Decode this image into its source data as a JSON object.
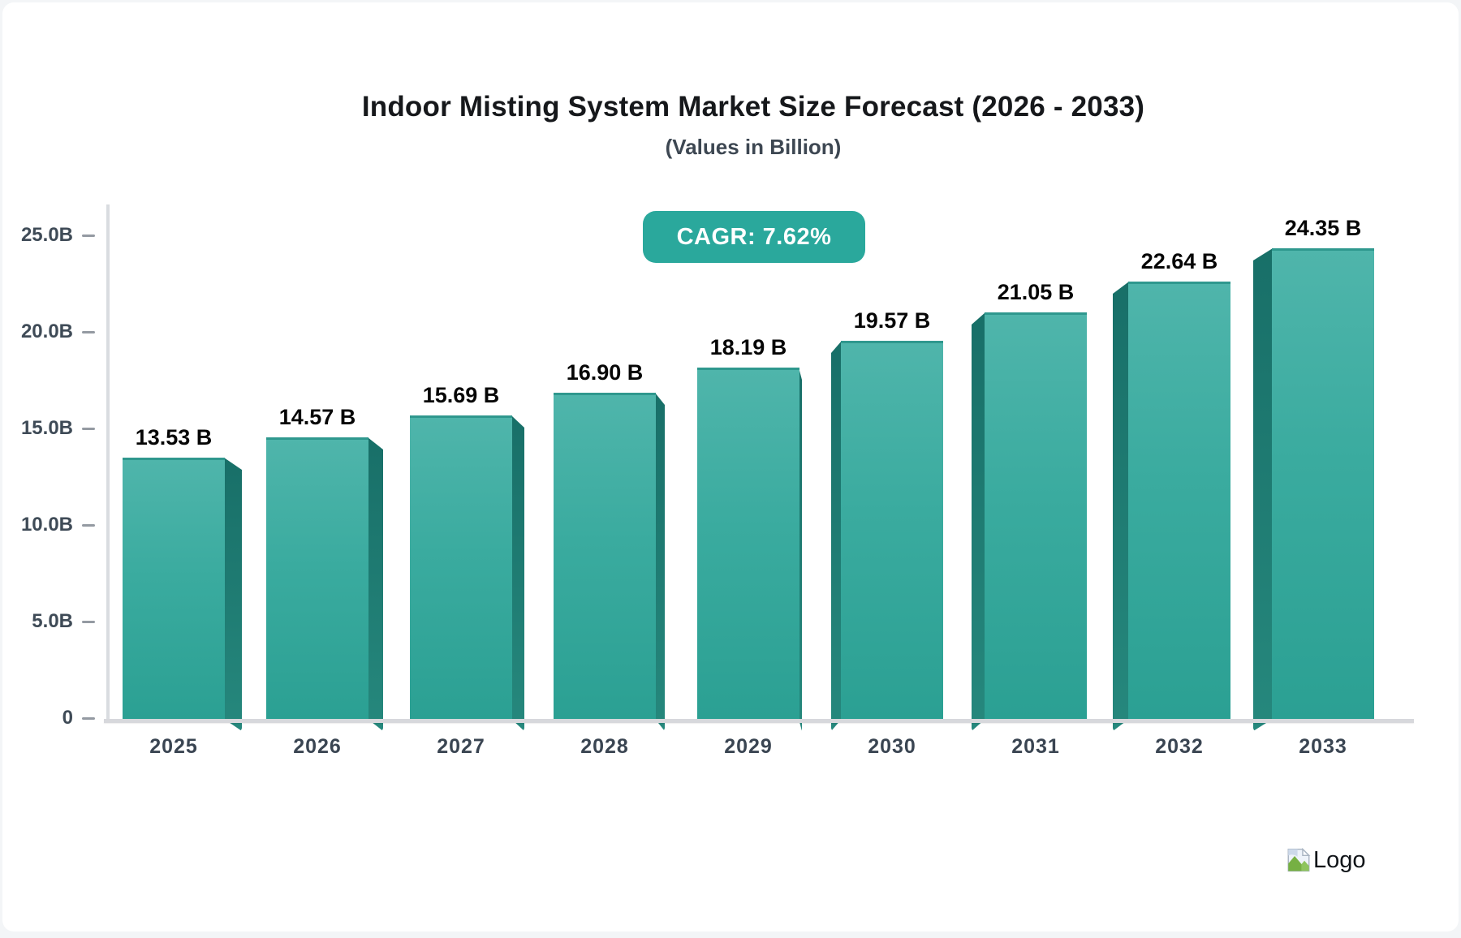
{
  "title": "Indoor Misting System Market Size Forecast (2026 - 2033)",
  "subtitle": "(Values in Billion)",
  "badge": {
    "label": "CAGR: 7.62%"
  },
  "logo": {
    "alt_text": "Logo",
    "icon": "broken-image-icon"
  },
  "colors": {
    "bar_front": "#3aab9f",
    "bar_side": "#1e7a73",
    "badge_bg": "#2aa89c",
    "axis_text": "#3f4b57",
    "value_text": "#060606",
    "baseline": "#d7d8dc"
  },
  "chart_data": {
    "type": "bar",
    "title": "Indoor Misting System Market Size Forecast (2026 - 2033)",
    "subtitle": "(Values in Billion)",
    "annotation": "CAGR: 7.62%",
    "unit": "Billion",
    "categories": [
      "2025",
      "2026",
      "2027",
      "2028",
      "2029",
      "2030",
      "2031",
      "2032",
      "2033"
    ],
    "values": [
      13.53,
      14.57,
      15.69,
      16.9,
      18.19,
      19.57,
      21.05,
      22.64,
      24.35
    ],
    "bar_labels": [
      "13.53 B",
      "14.57 B",
      "15.69 B",
      "16.90 B",
      "18.19 B",
      "19.57 B",
      "21.05 B",
      "22.64 B",
      "24.35 B"
    ],
    "ylabel": "",
    "xlabel": "",
    "ylim": [
      0,
      25
    ],
    "grid": false,
    "legend": "none",
    "yticks": [
      {
        "label": "25.0B",
        "value": 25
      },
      {
        "label": "20.0B",
        "value": 20
      },
      {
        "label": "15.0B",
        "value": 15
      },
      {
        "label": "10.0B",
        "value": 10
      },
      {
        "label": "5.0B",
        "value": 5
      },
      {
        "label": "0",
        "value": 0
      }
    ]
  }
}
